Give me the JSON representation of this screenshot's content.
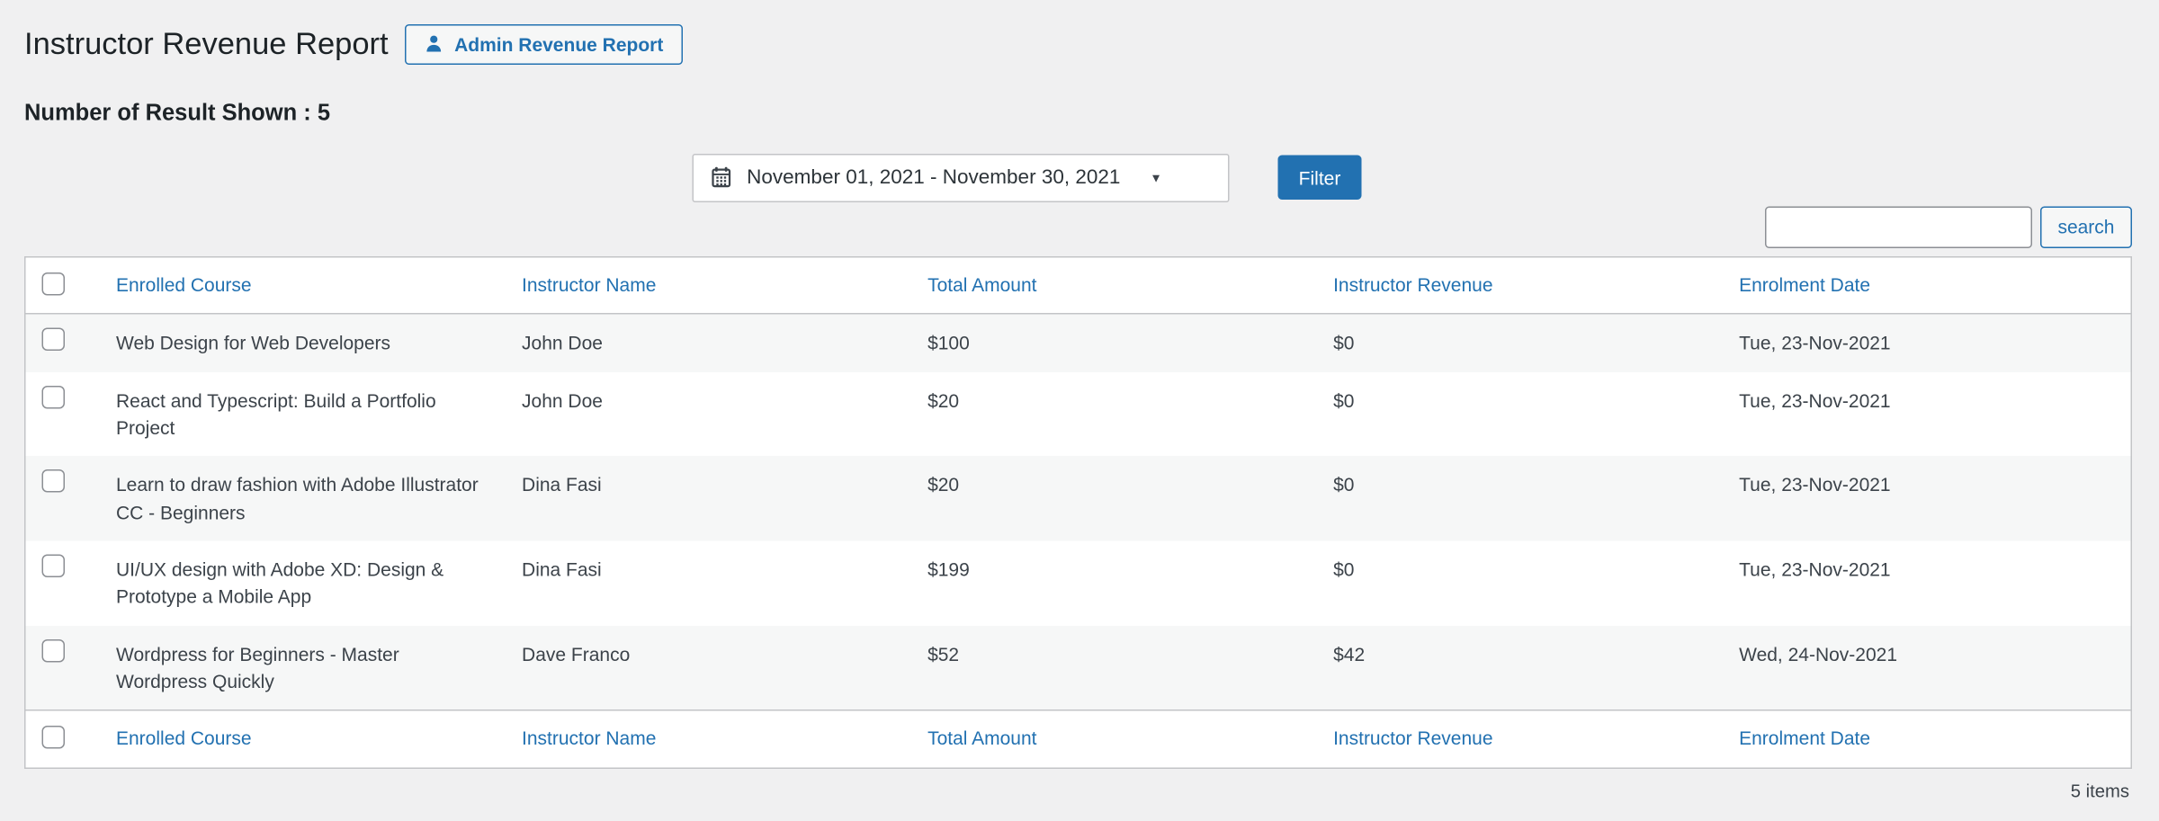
{
  "header": {
    "title": "Instructor Revenue Report",
    "admin_button_label": "Admin Revenue Report",
    "result_count": "Number of Result Shown : 5"
  },
  "filter_bar": {
    "date_range": "November 01, 2021 - November 30, 2021",
    "filter_button_label": "Filter"
  },
  "search": {
    "value": "",
    "placeholder": "",
    "button_label": "search"
  },
  "table": {
    "columns": [
      "Enrolled Course",
      "Instructor Name",
      "Total Amount",
      "Instructor Revenue",
      "Enrolment Date"
    ],
    "rows": [
      {
        "course": "Web Design for Web Developers",
        "instructor": "John Doe",
        "total": "$100",
        "revenue": "$0",
        "date": "Tue, 23-Nov-2021"
      },
      {
        "course": "React and Typescript: Build a Portfolio Project",
        "instructor": "John Doe",
        "total": "$20",
        "revenue": "$0",
        "date": "Tue, 23-Nov-2021"
      },
      {
        "course": "Learn to draw fashion with Adobe Illustrator CC - Beginners",
        "instructor": "Dina Fasi",
        "total": "$20",
        "revenue": "$0",
        "date": "Tue, 23-Nov-2021"
      },
      {
        "course": "UI/UX design with Adobe XD: Design & Prototype a Mobile App",
        "instructor": "Dina Fasi",
        "total": "$199",
        "revenue": "$0",
        "date": "Tue, 23-Nov-2021"
      },
      {
        "course": "Wordpress for Beginners - Master Wordpress Quickly",
        "instructor": "Dave Franco",
        "total": "$52",
        "revenue": "$42",
        "date": "Wed, 24-Nov-2021"
      }
    ],
    "items_count": "5 items"
  },
  "colors": {
    "accent": "#2271b1",
    "page_background": "#f0f0f1",
    "row_alt_background": "#f6f7f7",
    "table_border": "#c3c4c7",
    "text": "#3c434a",
    "heading_text": "#1d2327"
  }
}
